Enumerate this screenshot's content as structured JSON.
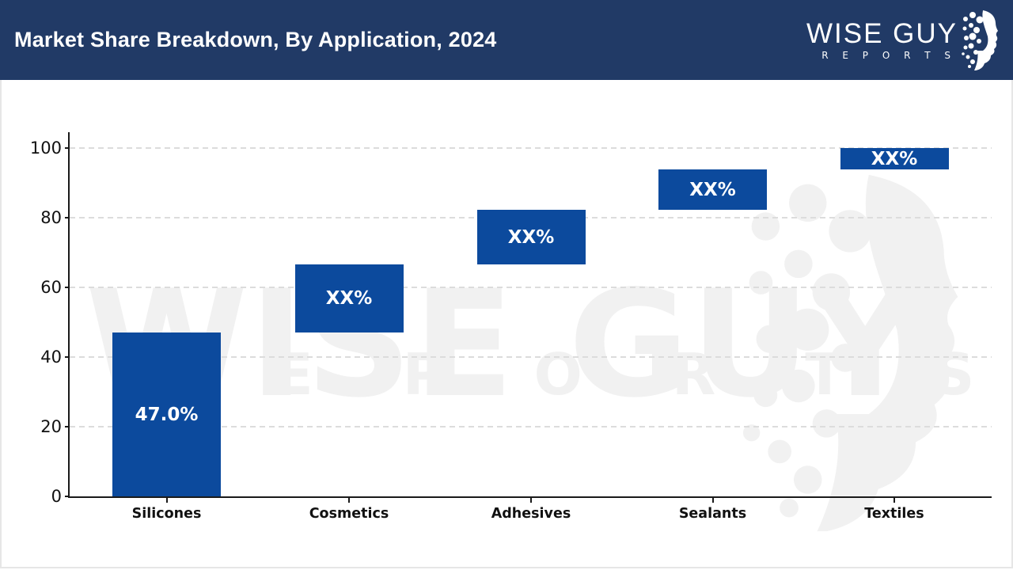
{
  "header": {
    "title": "Market Share Breakdown, By Application, 2024",
    "bg_color": "#213a66",
    "logo": {
      "line1": "WISE GUY",
      "line2": "R E P O R T S"
    }
  },
  "watermark": {
    "line1": "WISE GUY",
    "line2": "R E P O R T S"
  },
  "chart_data": {
    "type": "bar",
    "subtype": "waterfall",
    "title": "Market Share Breakdown, By Application, 2024",
    "categories": [
      "Silicones",
      "Cosmetics",
      "Adhesives",
      "Sealants",
      "Textiles"
    ],
    "segments": [
      {
        "category": "Silicones",
        "start": 0,
        "end": 47,
        "label": "47.0%"
      },
      {
        "category": "Cosmetics",
        "start": 47,
        "end": 66.5,
        "label": "XX%"
      },
      {
        "category": "Adhesives",
        "start": 66.5,
        "end": 82.3,
        "label": "XX%"
      },
      {
        "category": "Sealants",
        "start": 82.3,
        "end": 93.8,
        "label": "XX%"
      },
      {
        "category": "Textiles",
        "start": 93.8,
        "end": 100,
        "label": "XX%"
      }
    ],
    "xlabel": "",
    "ylabel": "",
    "ylim": [
      0,
      100
    ],
    "yticks": [
      0,
      20,
      40,
      60,
      80,
      100
    ],
    "grid": "horizontal-dashed",
    "legend": "none",
    "bar_color": "#0c4a9d",
    "bar_label_color": "#ffffff",
    "axis_color": "#1a1a1a",
    "gridline_color": "#dcdcdc"
  }
}
